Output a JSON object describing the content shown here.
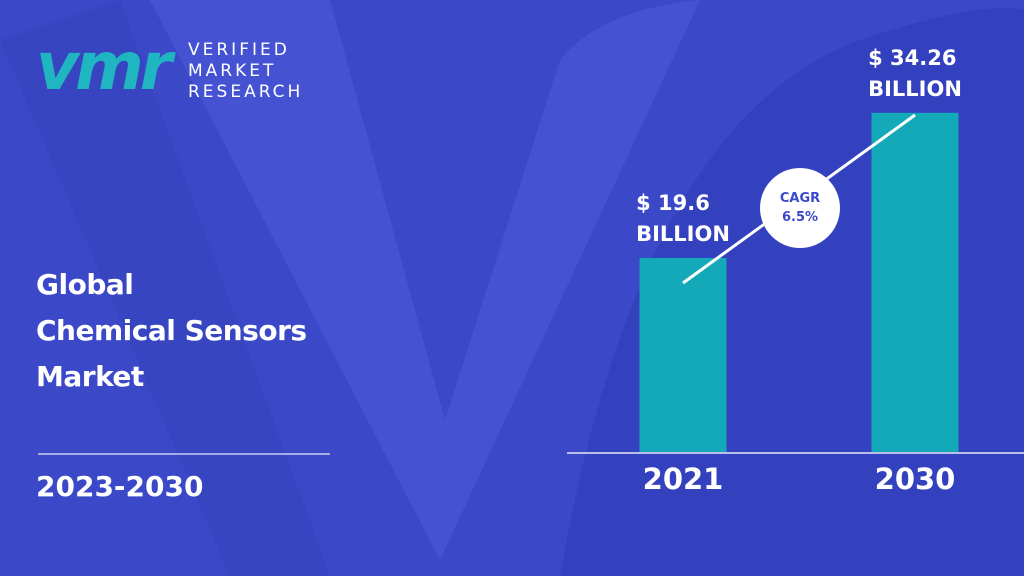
{
  "brand": {
    "mark": "vmr",
    "name": "VERIFIED\nMARKET\nRESEARCH"
  },
  "chart_data": {
    "type": "bar",
    "title": "Global\nChemical Sensors\nMarket",
    "subtitle": "2023-2030",
    "categories": [
      "2021",
      "2030"
    ],
    "values": [
      19.6,
      34.26
    ],
    "value_labels": [
      "$ 19.6\nBILLION",
      "$ 34.26\nBILLION"
    ],
    "color": "#14a9b8",
    "annotation": "CAGR\n6.5%"
  }
}
